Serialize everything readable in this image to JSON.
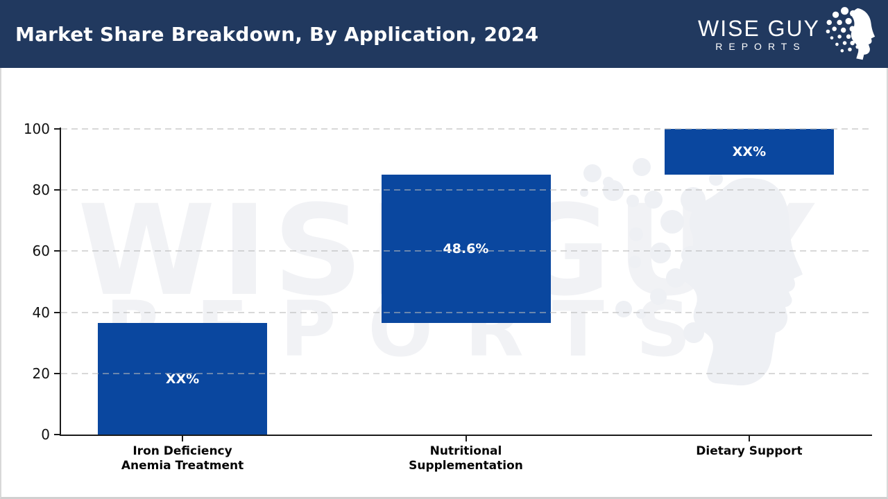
{
  "header": {
    "title": "Market Share Breakdown, By Application, 2024",
    "bg_color": "#21395f",
    "logo_line1": "WISE GUY",
    "logo_line2": "REPORTS"
  },
  "watermark": {
    "big_text": "WISE GUY",
    "small_text": "REPORTS"
  },
  "chart_data": {
    "type": "bar",
    "variant": "stacked-percentage-waterfall",
    "title": "Market Share Breakdown, By Application, 2024",
    "categories": [
      {
        "lines": [
          "Iron Deficiency",
          "Anemia Treatment"
        ]
      },
      {
        "lines": [
          "Nutritional",
          "Supplementation"
        ]
      },
      {
        "lines": [
          "Dietary Support"
        ]
      }
    ],
    "bars": [
      {
        "start": 0,
        "end": 36.5,
        "label": "XX%"
      },
      {
        "start": 36.5,
        "end": 85.1,
        "label": "48.6%"
      },
      {
        "start": 85.1,
        "end": 100,
        "label": "XX%"
      }
    ],
    "ylim": [
      0,
      100
    ],
    "yticks": [
      0,
      20,
      40,
      60,
      80,
      100
    ],
    "grid": {
      "show": true,
      "style": "dashed",
      "color": "#d8d8d8"
    },
    "bar_color": "#0a479f",
    "bar_label_color": "#ffffff",
    "axis_color": "#1a1a1a",
    "legend": "none"
  }
}
